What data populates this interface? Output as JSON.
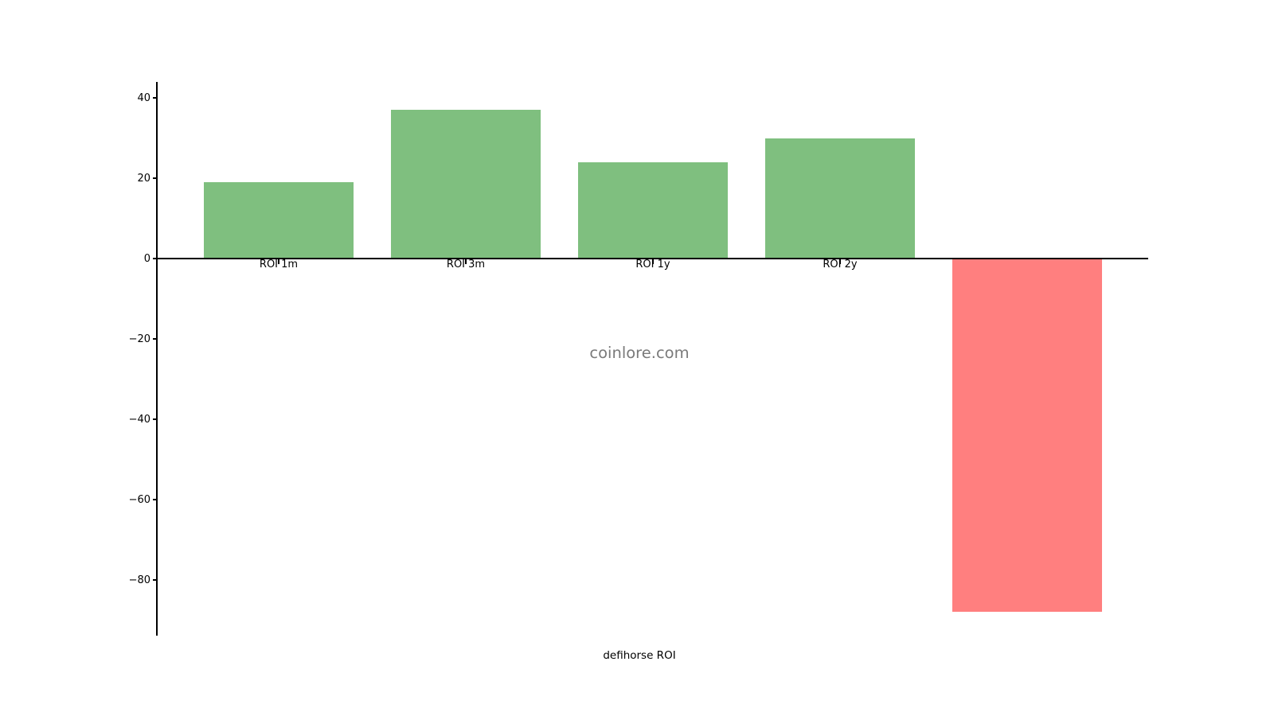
{
  "chart_data": {
    "type": "bar",
    "title": "",
    "xlabel": "defihorse ROI",
    "ylabel": "",
    "categories": [
      "ROI 1m",
      "ROI 3m",
      "ROI 1y",
      "ROI 2y",
      ""
    ],
    "values": [
      19,
      37,
      24,
      30,
      -88
    ],
    "positive_color": "#7fbf7f",
    "negative_color": "#ff7f7f",
    "yticks": [
      40,
      20,
      0,
      -20,
      -40,
      -60,
      -80
    ],
    "ytick_labels": [
      "40",
      "20",
      "0",
      "−20",
      "−40",
      "−60",
      "−80"
    ],
    "ylim": [
      -94.25,
      43.25
    ],
    "grid": false,
    "legend": "none",
    "watermark": "coinlore.com",
    "axis_color": "#000000",
    "text_color": "#000000",
    "watermark_color": "#7a7a7a"
  }
}
